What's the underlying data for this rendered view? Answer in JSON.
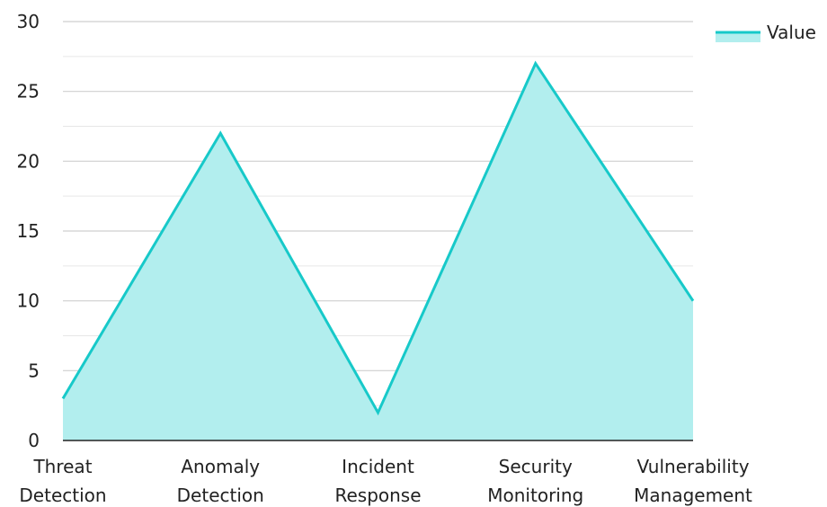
{
  "chart_data": {
    "type": "area",
    "categories": [
      "Threat Detection",
      "Anomaly Detection",
      "Incident Response",
      "Security Monitoring",
      "Vulnerability Management"
    ],
    "category_lines": [
      [
        "Threat",
        "Detection"
      ],
      [
        "Anomaly",
        "Detection"
      ],
      [
        "Incident",
        "Response"
      ],
      [
        "Security",
        "Monitoring"
      ],
      [
        "Vulnerability",
        "Management"
      ]
    ],
    "series": [
      {
        "name": "Value",
        "values": [
          3,
          22,
          2,
          27,
          10
        ]
      }
    ],
    "title": "",
    "xlabel": "",
    "ylabel": "",
    "ylim": [
      0,
      30
    ],
    "yticks": [
      0,
      5,
      10,
      15,
      20,
      25,
      30
    ],
    "grid": true,
    "legend_position": "top-right",
    "colors": {
      "line": "#17c9c9",
      "fill": "#b2eeee",
      "grid": "#cfcfcf",
      "axis": "#222222"
    }
  }
}
